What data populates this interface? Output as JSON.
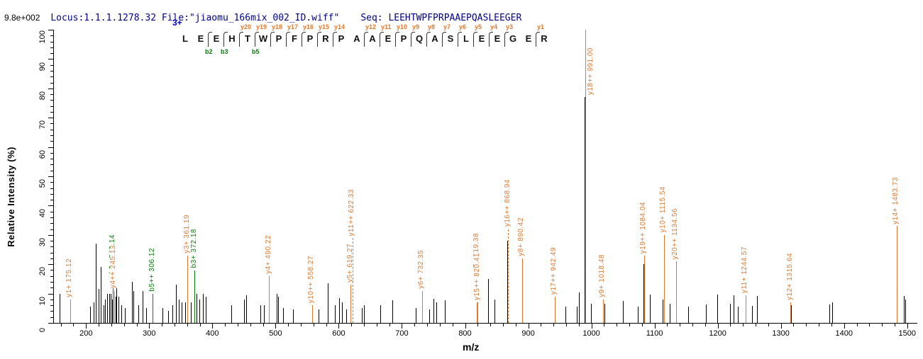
{
  "header": {
    "locus_file": "Locus:1.1.1.1278.32 File:\"jiaomu_166mix_002_ID.wiff\"",
    "seq_label": "Seq: LEEHTWPFPRPAAEPQASLEEGER",
    "max_intensity": "9.8e+002"
  },
  "charge_state": "3+",
  "colors": {
    "header_text": "#00008b",
    "charge_text": "#0000cc",
    "y_ion": "#dd7b33",
    "b_ion": "#0b7b0b",
    "peak": "#000000",
    "axis": "#000000"
  },
  "sequence": {
    "residues": [
      "L",
      "E",
      "E",
      "H",
      "T",
      "W",
      "P",
      "F",
      "P",
      "R",
      "P",
      "A",
      "A",
      "E",
      "P",
      "Q",
      "A",
      "S",
      "L",
      "E",
      "E",
      "G",
      "E",
      "R"
    ],
    "boundaries": [
      {
        "after": 2,
        "b": "b2"
      },
      {
        "after": 3,
        "b": "b3"
      },
      {
        "after": 4,
        "y": "y20"
      },
      {
        "after": 5,
        "y": "y19",
        "b": "b5"
      },
      {
        "after": 6,
        "y": "y18"
      },
      {
        "after": 7,
        "y": "y17"
      },
      {
        "after": 8,
        "y": "y16"
      },
      {
        "after": 9,
        "y": "y15"
      },
      {
        "after": 10,
        "y": "y14"
      },
      {
        "after": 12,
        "y": "y12"
      },
      {
        "after": 13,
        "y": "y11"
      },
      {
        "after": 14,
        "y": "y10"
      },
      {
        "after": 15,
        "y": "y9"
      },
      {
        "after": 16,
        "y": "y8"
      },
      {
        "after": 17,
        "y": "y7"
      },
      {
        "after": 18,
        "y": "y6"
      },
      {
        "after": 19,
        "y": "y5"
      },
      {
        "after": 20,
        "y": "y4"
      },
      {
        "after": 21,
        "y": "y3"
      },
      {
        "after": 23,
        "y": "y1"
      }
    ]
  },
  "chart_data": {
    "type": "bar",
    "title": "",
    "xlabel": "m/z",
    "ylabel": "Relative  Intensity (%)",
    "xlim": [
      148,
      1516
    ],
    "ylim": [
      0,
      100
    ],
    "x_major_step": 100,
    "x_minor_step": 20,
    "x_major_ticks": [
      200,
      300,
      400,
      500,
      600,
      700,
      800,
      900,
      1000,
      1100,
      1200,
      1300,
      1400,
      1500
    ],
    "y_major_step": 10,
    "y_minor_step": 2,
    "y_major_ticks": [
      0,
      10,
      20,
      30,
      40,
      50,
      60,
      70,
      80,
      90,
      100
    ],
    "grid": false,
    "legend": "none",
    "peaks_unlabeled": [
      [
        159,
        10
      ],
      [
        207,
        5.5
      ],
      [
        213,
        7
      ],
      [
        216,
        27
      ],
      [
        220,
        11.5
      ],
      [
        224,
        19
      ],
      [
        228,
        6
      ],
      [
        231,
        8
      ],
      [
        234,
        10
      ],
      [
        237,
        10
      ],
      [
        240,
        10
      ],
      [
        242,
        8
      ],
      [
        247,
        9
      ],
      [
        249,
        12
      ],
      [
        252,
        9
      ],
      [
        256,
        6
      ],
      [
        262,
        5
      ],
      [
        273,
        14
      ],
      [
        276,
        11
      ],
      [
        283,
        6
      ],
      [
        290,
        11
      ],
      [
        296,
        5
      ],
      [
        322,
        5
      ],
      [
        330,
        4
      ],
      [
        337,
        6
      ],
      [
        343,
        13
      ],
      [
        347,
        8
      ],
      [
        352,
        7
      ],
      [
        357,
        7
      ],
      [
        367,
        7
      ],
      [
        375,
        10
      ],
      [
        380,
        8
      ],
      [
        386,
        10
      ],
      [
        390,
        9
      ],
      [
        430,
        6
      ],
      [
        451,
        8
      ],
      [
        454,
        9.5
      ],
      [
        476,
        6
      ],
      [
        482,
        6
      ],
      [
        502,
        10
      ],
      [
        505,
        9
      ],
      [
        513,
        5
      ],
      [
        528,
        4.5
      ],
      [
        569,
        4.5
      ],
      [
        583,
        13.5
      ],
      [
        595,
        6
      ],
      [
        601,
        8.5
      ],
      [
        606,
        7
      ],
      [
        612,
        4.5
      ],
      [
        637,
        5
      ],
      [
        640,
        6
      ],
      [
        666,
        6
      ],
      [
        685,
        7.7
      ],
      [
        723,
        5
      ],
      [
        744,
        4.5
      ],
      [
        751,
        8.3
      ],
      [
        755,
        7
      ],
      [
        768,
        7.7
      ],
      [
        837,
        15
      ],
      [
        847,
        8
      ],
      [
        867,
        28
      ],
      [
        960,
        5.5
      ],
      [
        978,
        5.5
      ],
      [
        981,
        10.5
      ],
      [
        990,
        77
      ],
      [
        1000,
        6.5
      ],
      [
        1021,
        6.5
      ],
      [
        1050,
        7.5
      ],
      [
        1074,
        5.5
      ],
      [
        1083,
        20
      ],
      [
        1093,
        9.7
      ],
      [
        1113,
        8
      ],
      [
        1125,
        6.5
      ],
      [
        1154,
        5.5
      ],
      [
        1182,
        6.3
      ],
      [
        1200,
        9.6
      ],
      [
        1220,
        6.5
      ],
      [
        1226,
        9.5
      ],
      [
        1232,
        5.6
      ],
      [
        1255,
        5.8
      ],
      [
        1263,
        9.3
      ],
      [
        1317,
        6
      ],
      [
        1377,
        6.2
      ],
      [
        1382,
        7
      ],
      [
        1495,
        9.2
      ],
      [
        1498,
        8
      ]
    ],
    "annotated_peaks": [
      {
        "series": "y",
        "label": "y1+ 175.12",
        "mz": 175.12,
        "intensity": 8
      },
      {
        "series": "b",
        "label": "b2+ 243.14",
        "mz": 243.14,
        "intensity": 16
      },
      {
        "series": "y",
        "label": "y4++ 245.13",
        "mz": 245.13,
        "intensity": 11
      },
      {
        "series": "b",
        "label": "b5++ 306.12",
        "mz": 306.12,
        "intensity": 10
      },
      {
        "series": "y",
        "label": "y3+ 361.19",
        "mz": 361.19,
        "intensity": 23
      },
      {
        "series": "b",
        "label": "b3+ 372.18",
        "mz": 372.18,
        "intensity": 18
      },
      {
        "series": "y",
        "label": "y4+ 490.22",
        "mz": 490.22,
        "intensity": 16
      },
      {
        "series": "y",
        "label": "y10++ 558.27",
        "mz": 558.27,
        "intensity": 6
      },
      {
        "series": "y",
        "label": "y5+ 619.27",
        "mz": 619.27,
        "intensity": 13
      },
      {
        "series": "y",
        "label": "y11++ 622.33",
        "mz": 622.33,
        "intensity": 29,
        "dashed": true
      },
      {
        "series": "y",
        "label": "y6+ 732.35",
        "mz": 732.35,
        "intensity": 11
      },
      {
        "series": "y",
        "label": "y7+ 819.38",
        "mz": 819.38,
        "intensity": 7,
        "label_drop": -40
      },
      {
        "series": "y",
        "label": "y15++ 820.41",
        "mz": 820.41,
        "intensity": 7
      },
      {
        "series": "y",
        "label": "y16++ 868.94",
        "mz": 868.94,
        "intensity": 32,
        "dashed": true
      },
      {
        "series": "y",
        "label": "y8+ 890.42",
        "mz": 890.42,
        "intensity": 22
      },
      {
        "series": "y",
        "label": "y17++ 942.49",
        "mz": 942.49,
        "intensity": 9
      },
      {
        "series": "y",
        "label": "y18++ 991.00",
        "mz": 991.0,
        "intensity": 100,
        "label_drop": 95,
        "label_dx": 8
      },
      {
        "series": "y",
        "label": "y9+ 1018.48",
        "mz": 1018.48,
        "intensity": 8
      },
      {
        "series": "y",
        "label": "y19++ 1084.04",
        "mz": 1084.04,
        "intensity": 23
      },
      {
        "series": "y",
        "label": "y10+ 1115.54",
        "mz": 1115.54,
        "intensity": 30
      },
      {
        "series": "y",
        "label": "y20++ 1134.56",
        "mz": 1134.56,
        "intensity": 21
      },
      {
        "series": "y",
        "label": "y11+ 1244.57",
        "mz": 1244.57,
        "intensity": 9.4
      },
      {
        "series": "y",
        "label": "y12+ 1315.64",
        "mz": 1315.64,
        "intensity": 7
      },
      {
        "series": "y",
        "label": "y14+ 1483.73",
        "mz": 1483.73,
        "intensity": 33
      }
    ]
  }
}
